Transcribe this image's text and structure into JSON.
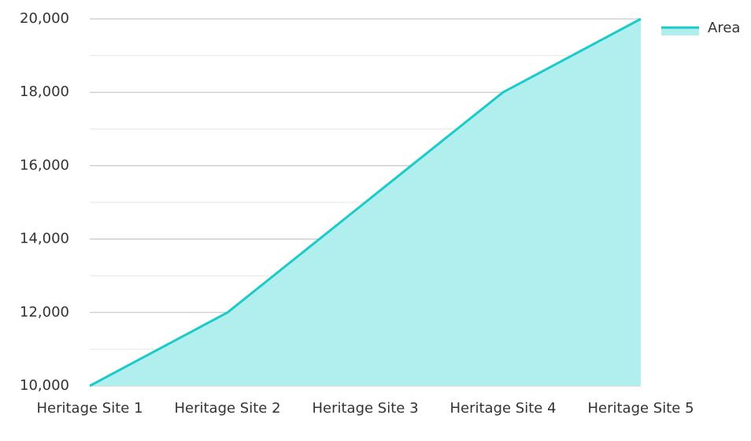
{
  "chart_data": {
    "type": "area",
    "categories": [
      "Heritage Site 1",
      "Heritage Site 2",
      "Heritage Site 3",
      "Heritage Site 4",
      "Heritage Site 5"
    ],
    "series": [
      {
        "name": "Area",
        "color": "#1ccaca",
        "fill": "#b1efef",
        "values": [
          10000,
          12000,
          15000,
          18000,
          20000
        ]
      }
    ],
    "ylim": [
      10000,
      20000
    ],
    "yticks": [
      {
        "value": 10000,
        "label": "10,000"
      },
      {
        "value": 12000,
        "label": "12,000"
      },
      {
        "value": 14000,
        "label": "14,000"
      },
      {
        "value": 16000,
        "label": "16,000"
      },
      {
        "value": 18000,
        "label": "18,000"
      },
      {
        "value": 20000,
        "label": "20,000"
      }
    ],
    "minor_yticks": [
      11000,
      13000,
      15000,
      17000,
      19000
    ],
    "grid": true,
    "legend": "top-right"
  }
}
